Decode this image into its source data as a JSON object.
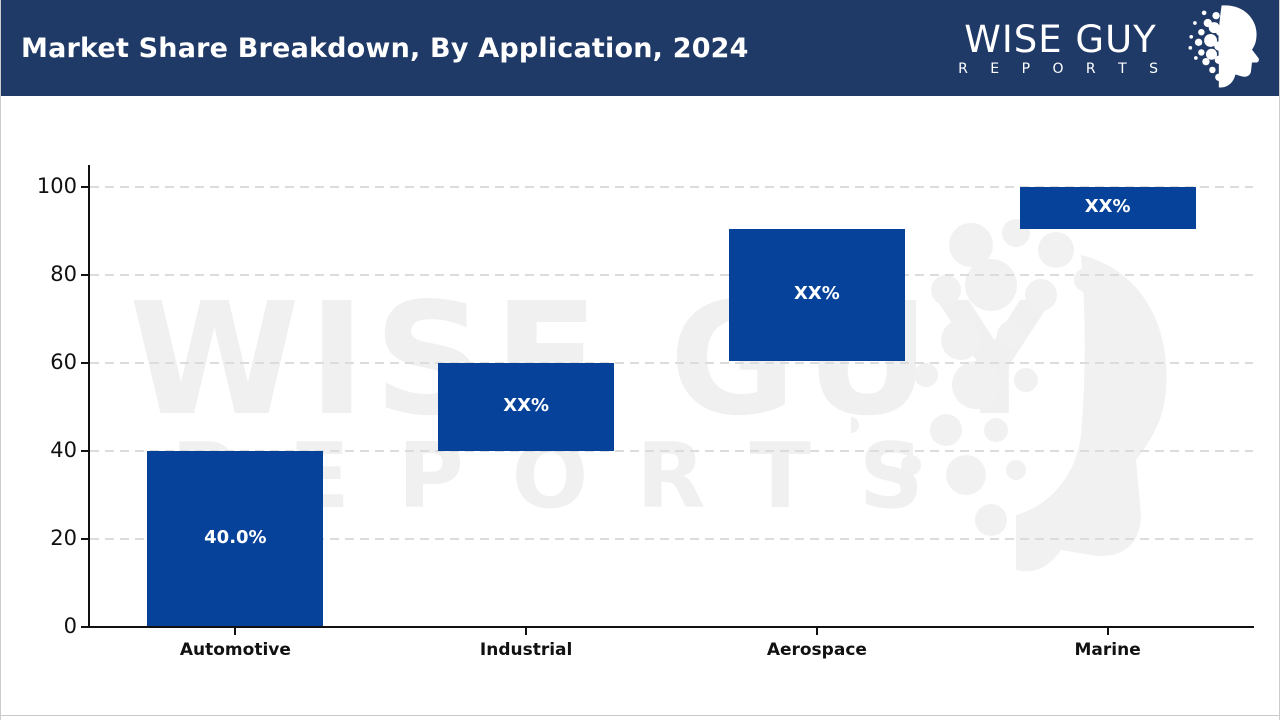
{
  "header": {
    "title": "Market Share Breakdown, By Application, 2024",
    "logo_line1": "WISE GUY",
    "logo_line2": "R E P O R T S"
  },
  "watermark": {
    "line1": "WISE GUY",
    "line2": "REPORTS"
  },
  "colors": {
    "header_bg": "#203a68",
    "bar_fill": "#06429a",
    "grid_line": "#dcdcdc",
    "axis": "#111111",
    "bar_label_text": "#ffffff",
    "watermark": "#f0f0f0"
  },
  "chart_data": {
    "type": "bar",
    "subtype": "waterfall",
    "title": "Market Share Breakdown, By Application, 2024",
    "xlabel": "",
    "ylabel": "",
    "categories": [
      "Automotive",
      "Industrial",
      "Aerospace",
      "Marine"
    ],
    "segments": [
      {
        "category": "Automotive",
        "start": 0,
        "end": 40,
        "value": 40.0,
        "label": "40.0%"
      },
      {
        "category": "Industrial",
        "start": 40,
        "end": 60,
        "value": 20.0,
        "label": "XX%"
      },
      {
        "category": "Aerospace",
        "start": 60.5,
        "end": 90.5,
        "value": 30.0,
        "label": "XX%"
      },
      {
        "category": "Marine",
        "start": 90.5,
        "end": 100,
        "value": 9.5,
        "label": "XX%"
      }
    ],
    "yticks": [
      0,
      20,
      40,
      60,
      80,
      100
    ],
    "ylim": [
      0,
      105
    ],
    "grid": "dashed-horizontal",
    "legend": "none"
  }
}
